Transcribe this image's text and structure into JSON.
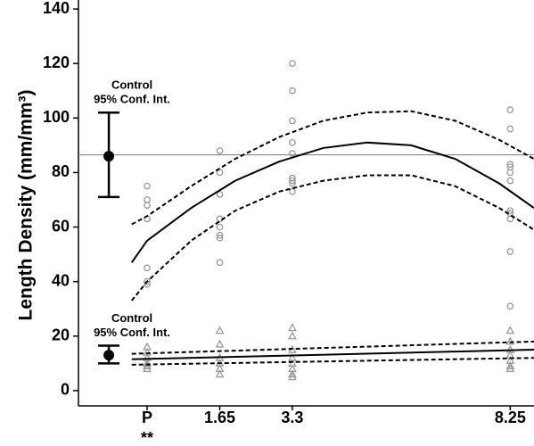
{
  "chart_data": {
    "type": "scatter",
    "y_label": "Length Density (mm/mm³)",
    "xlim": [
      -1.56,
      8.79
    ],
    "ylim": [
      -5.6,
      143.3
    ],
    "xticks": [
      {
        "value": 0,
        "label": "P"
      },
      1.65,
      3.3,
      8.25
    ],
    "yticks": [
      0,
      20,
      40,
      60,
      80,
      100,
      120,
      140
    ],
    "x_note": "**",
    "reference_line": 86.5,
    "series": [
      {
        "type": "scatter",
        "marker": "circle",
        "color": "#999999",
        "x": [
          0,
          0,
          0,
          0,
          0,
          0,
          0,
          1.65,
          1.65,
          1.65,
          1.65,
          1.65,
          1.65,
          1.65,
          1.65,
          3.3,
          3.3,
          3.3,
          3.3,
          3.3,
          3.3,
          3.3,
          3.3,
          3.3,
          8.25,
          8.25,
          8.25,
          8.25,
          8.25,
          8.25,
          8.25,
          8.25,
          8.25,
          8.25,
          8.25
        ],
        "values": [
          75,
          70,
          68,
          63,
          45,
          40,
          39,
          88,
          80,
          72,
          63,
          60,
          57,
          56,
          47,
          120,
          110,
          99,
          91,
          87,
          78,
          77,
          76,
          73,
          103,
          96,
          83,
          82,
          80,
          77,
          66,
          65,
          63,
          51,
          31
        ]
      },
      {
        "type": "scatter",
        "marker": "triangle",
        "color": "#999999",
        "x": [
          0,
          0,
          0,
          0,
          0,
          0,
          1.65,
          1.65,
          1.65,
          1.65,
          1.65,
          1.65,
          3.3,
          3.3,
          3.3,
          3.3,
          3.3,
          3.3,
          3.3,
          3.3,
          8.25,
          8.25,
          8.25,
          8.25,
          8.25,
          8.25,
          8.25
        ],
        "values": [
          16,
          14,
          12,
          10,
          9,
          8,
          22,
          17,
          12,
          10,
          8,
          6,
          23,
          20,
          15,
          12,
          10,
          8,
          6,
          5,
          22,
          18,
          15,
          13,
          11,
          9,
          8
        ]
      },
      {
        "type": "line",
        "dash": false,
        "color": "#000000",
        "x": [
          -0.35,
          0,
          1,
          2,
          3,
          4,
          5,
          6,
          7,
          8,
          8.79
        ],
        "values": [
          47,
          55,
          67,
          77,
          84,
          89,
          91,
          90,
          85,
          76,
          67
        ]
      },
      {
        "type": "line",
        "dash": true,
        "color": "#000000",
        "x": [
          -0.35,
          0,
          1,
          2,
          3,
          4,
          5,
          6,
          7,
          8,
          8.79
        ],
        "values": [
          61,
          64,
          75,
          85,
          93,
          99,
          102,
          102.5,
          99,
          92,
          85
        ]
      },
      {
        "type": "line",
        "dash": true,
        "color": "#000000",
        "x": [
          -0.35,
          0,
          1,
          2,
          3,
          4,
          5,
          6,
          7,
          8,
          8.79
        ],
        "values": [
          33,
          40,
          55,
          66,
          73,
          77,
          79,
          79,
          75,
          67,
          59
        ]
      },
      {
        "type": "line",
        "dash": false,
        "color": "#000000",
        "x": [
          -0.35,
          8.79
        ],
        "values": [
          11.5,
          15
        ]
      },
      {
        "type": "line",
        "dash": true,
        "color": "#000000",
        "x": [
          -0.35,
          8.79
        ],
        "values": [
          13.5,
          18
        ]
      },
      {
        "type": "line",
        "dash": true,
        "color": "#000000",
        "x": [
          -0.35,
          8.79
        ],
        "values": [
          9.5,
          12
        ]
      }
    ],
    "controls": [
      {
        "label": "Control",
        "sublabel": "95% Conf. Int.",
        "x": -0.87,
        "mean": 86,
        "lower": 71,
        "upper": 102
      },
      {
        "label": "Control",
        "sublabel": "95% Conf. Int.",
        "x": -0.87,
        "mean": 13,
        "lower": 10,
        "upper": 16.5
      }
    ]
  }
}
